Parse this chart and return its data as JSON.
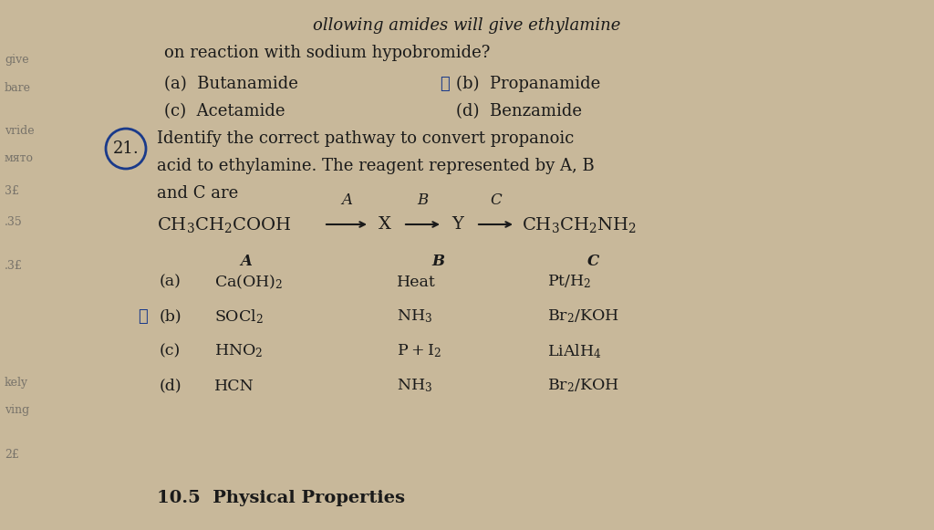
{
  "bg_color": "#c8b89a",
  "page_bg": "#d4c4a8",
  "title_top1": "on reaction with sodium hypobromide?",
  "title_top0": "ollowing amides will give ethylamine",
  "prev_options": [
    [
      "(a)  Butanamide",
      "(b)  Propanamide"
    ],
    [
      "(c)  Acetamide",
      "(d)  Benzamide"
    ]
  ],
  "q_number": "21.",
  "q_text1": "Identify the correct pathway to convert propanoic",
  "q_text2": "acid to ethylamine. The reagent represented by A, B",
  "q_text3": "and C are",
  "reaction_left": "CH₃CH₂COOH",
  "reaction_x": "X",
  "reaction_y": "Y",
  "reaction_right": "CH₃CH₂NH₂",
  "arrow_label_A": "A",
  "arrow_label_B": "B",
  "arrow_label_C": "C",
  "col_headers": [
    "A",
    "B",
    "C"
  ],
  "options": [
    [
      "(a)",
      "Ca(OH)₂",
      "Heat",
      "Pt/H₂"
    ],
    [
      "(b)",
      "SOCl₂",
      "NH₃",
      "Br₂/KOH"
    ],
    [
      "(c)",
      "HNO₂",
      "P + I₂",
      "LiAlH₄"
    ],
    [
      "(d)",
      "HCN",
      "NH₃",
      "Br₂/KOH"
    ]
  ],
  "checkmark_b_prev": true,
  "checkmark_b_option": true,
  "circle_21": true,
  "bottom_text": "10.5  Physical Properties",
  "text_color": "#1a1a1a",
  "font_size_main": 13,
  "font_size_reaction": 13,
  "font_size_options": 12.5
}
